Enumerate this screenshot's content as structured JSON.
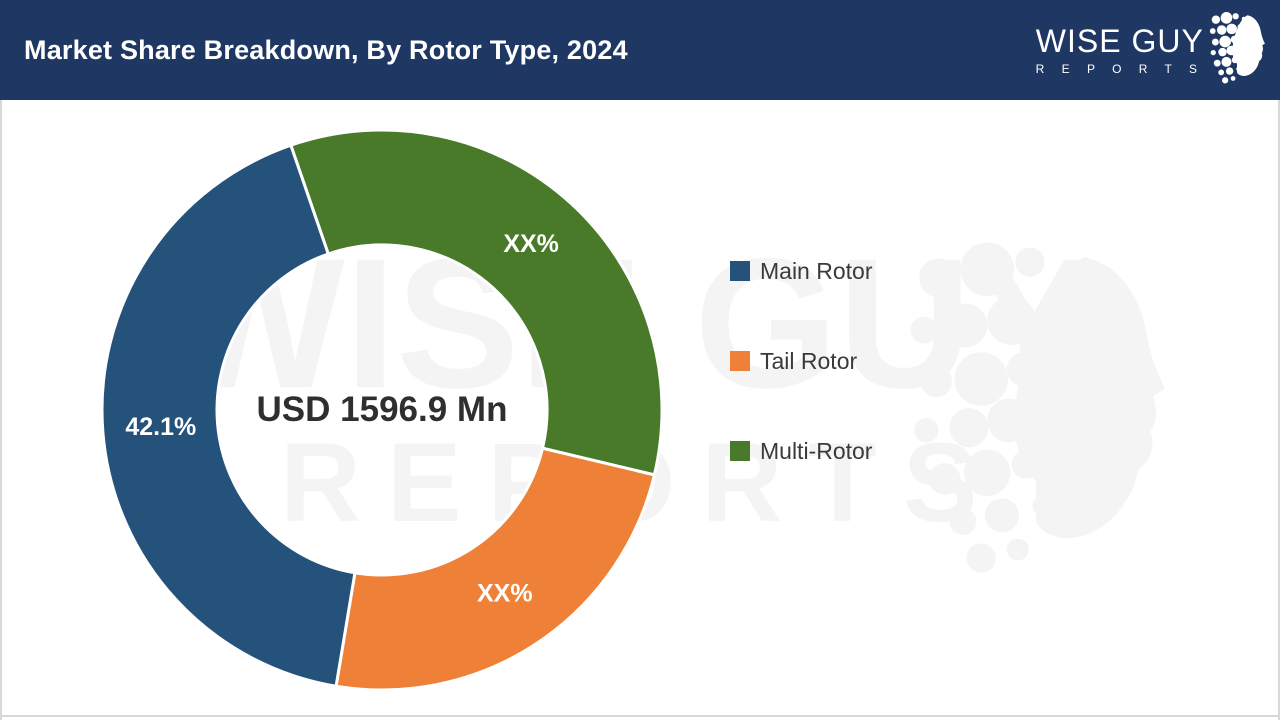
{
  "header": {
    "title": "Market Share Breakdown, By Rotor Type, 2024",
    "logo": {
      "name_top": "WISE GUY",
      "name_bottom": "R E P O R T S"
    }
  },
  "watermark": {
    "line1": "WISE GUY",
    "line2": "REPORTS"
  },
  "colors": {
    "header_bg": "#1f3763",
    "main_rotor": "#24527b",
    "tail_rotor": "#ee8137",
    "multi_rotor": "#487a29",
    "slice_gap": "#ffffff",
    "center_text": "#2f2f2f",
    "legend_text": "#3a3a3a",
    "border": "#d8d8d8",
    "watermark": "#f4f4f5"
  },
  "chart_data": {
    "type": "pie",
    "style": "donut",
    "title": "Market Share Breakdown, By Rotor Type, 2024",
    "center_label": "USD 1596.9 Mn",
    "units": "percent market share",
    "start_angle_deg": -19,
    "legend_position": "right",
    "segments": [
      {
        "label": "Multi-Rotor",
        "value_pct_approx": 34.0,
        "value_display": "XX%",
        "color": "#487a29"
      },
      {
        "label": "Tail Rotor",
        "value_pct_approx": 23.9,
        "value_display": "XX%",
        "color": "#ee8137"
      },
      {
        "label": "Main Rotor",
        "value_pct_approx": 42.1,
        "value_display": "42.1%",
        "color": "#24527b"
      }
    ],
    "legend": [
      {
        "label": "Main Rotor",
        "color": "#24527b"
      },
      {
        "label": "Tail Rotor",
        "color": "#ee8137"
      },
      {
        "label": "Multi-Rotor",
        "color": "#487a29"
      }
    ]
  }
}
